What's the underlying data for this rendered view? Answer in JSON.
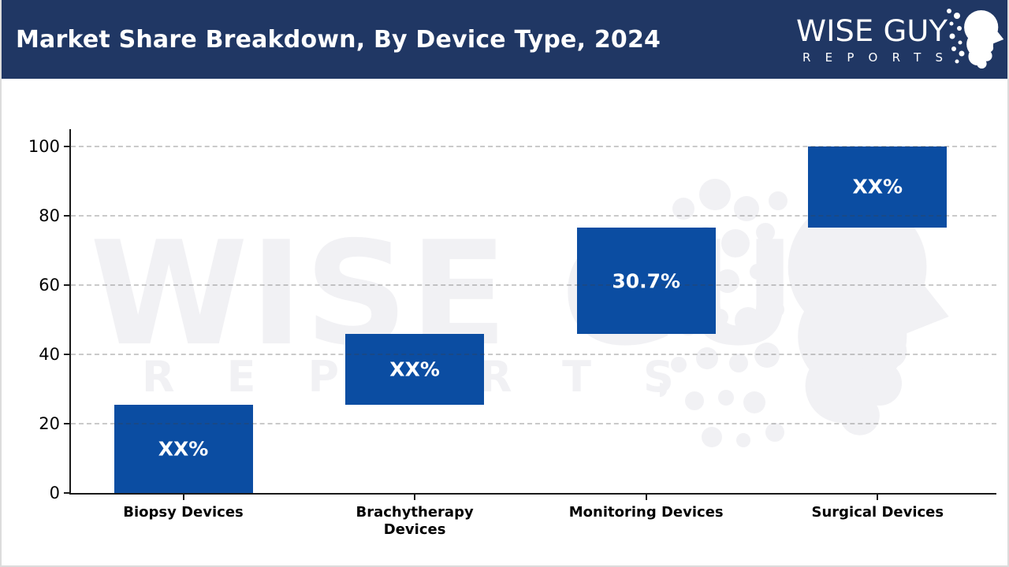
{
  "frame": {
    "background": "#ffffff",
    "border_color": "#dcdcdc"
  },
  "header": {
    "title": "Market Share Breakdown, By Device Type, 2024",
    "background": "#203764",
    "text_color": "#ffffff",
    "logo": {
      "line1": "WISE GUY",
      "line2": "REPORTS",
      "head_icon": "dotted-face-profile",
      "color": "#ffffff"
    }
  },
  "watermark": {
    "line1": "WISE GU",
    "line2": "REPORTS",
    "head_icon": "dotted-face-profile",
    "color": "#f1f1f4"
  },
  "chart_data": {
    "type": "bar",
    "subtype": "waterfall-floating-bars",
    "title": "Market Share Breakdown, By Device Type, 2024",
    "xlabel": "",
    "ylabel": "",
    "ylim": [
      0,
      100
    ],
    "yticks": [
      0,
      20,
      40,
      60,
      80,
      100
    ],
    "grid": {
      "axis": "y",
      "style": "dashed",
      "color": "rgba(64,64,64,0.28)",
      "drawn_over_bars": true
    },
    "legend": null,
    "bar_color": "#0b4da2",
    "bar_label_color": "#ffffff",
    "categories": [
      "Biopsy Devices",
      "Brachytherapy Devices",
      "Monitoring Devices",
      "Surgical Devices"
    ],
    "category_display_lines": [
      [
        "Biopsy Devices"
      ],
      [
        "Brachytherapy",
        "Devices"
      ],
      [
        "Monitoring Devices"
      ],
      [
        "Surgical Devices"
      ]
    ],
    "segments": [
      {
        "category": "Biopsy Devices",
        "start": 0,
        "end": 25.5,
        "value": 25.5,
        "label": "XX%"
      },
      {
        "category": "Brachytherapy Devices",
        "start": 25.5,
        "end": 45.9,
        "value": 20.4,
        "label": "XX%"
      },
      {
        "category": "Monitoring Devices",
        "start": 45.9,
        "end": 76.6,
        "value": 30.7,
        "label": "30.7%"
      },
      {
        "category": "Surgical Devices",
        "start": 76.6,
        "end": 100,
        "value": 23.4,
        "label": "XX%"
      }
    ]
  }
}
